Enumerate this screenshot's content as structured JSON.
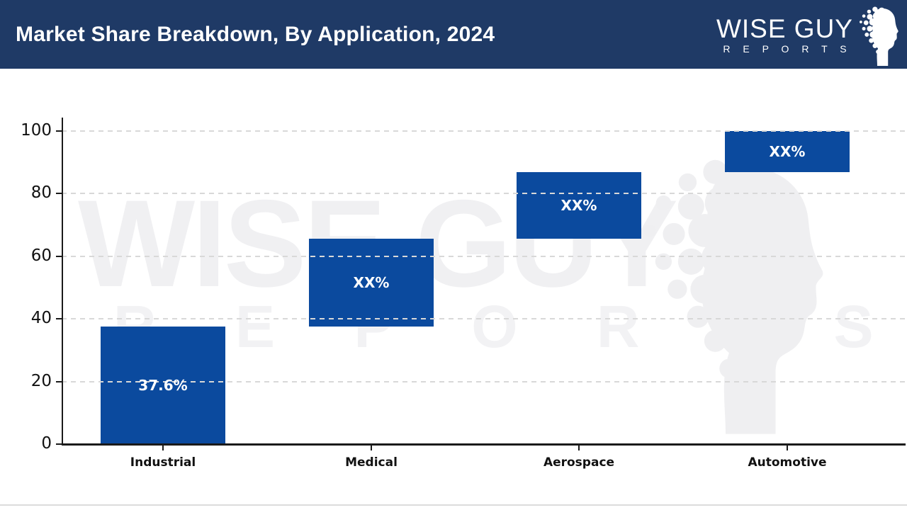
{
  "colors": {
    "header_bg": "#1f3a66",
    "bar": "#0b4a9e",
    "bar_label": "#ffffff",
    "gridline": "#d8d8d8",
    "axis": "#1a1a1a",
    "watermark": "#f0f0f2"
  },
  "header": {
    "title": "Market Share Breakdown, By Application, 2024",
    "logo": {
      "line1": "WISE GUY",
      "line2": "R E P O R T S",
      "head_icon": "dotted-head-profile"
    }
  },
  "watermark": {
    "line1": "WISE GUY",
    "line2": "R E P O R T S",
    "head_icon": "dotted-head-profile"
  },
  "chart_data": {
    "type": "bar",
    "subtype": "waterfall-floating-bars",
    "title": "Market Share Breakdown, By Application, 2024",
    "categories": [
      "Industrial",
      "Medical",
      "Aerospace",
      "Automotive"
    ],
    "series": [
      {
        "name": "Market Share",
        "segments": [
          {
            "category": "Industrial",
            "start": 0,
            "end": 37.6,
            "label": "37.6%"
          },
          {
            "category": "Medical",
            "start": 37.6,
            "end": 65.6,
            "label": "XX%"
          },
          {
            "category": "Aerospace",
            "start": 65.6,
            "end": 86.9,
            "label": "XX%"
          },
          {
            "category": "Automotive",
            "start": 86.9,
            "end": 100,
            "label": "XX%"
          }
        ]
      }
    ],
    "xlabel": "",
    "ylabel": "",
    "ylim": [
      0,
      100
    ],
    "yticks": [
      0,
      20,
      40,
      60,
      80,
      100
    ],
    "grid": "horizontal dashed, drawn above bars",
    "legend": "none"
  }
}
